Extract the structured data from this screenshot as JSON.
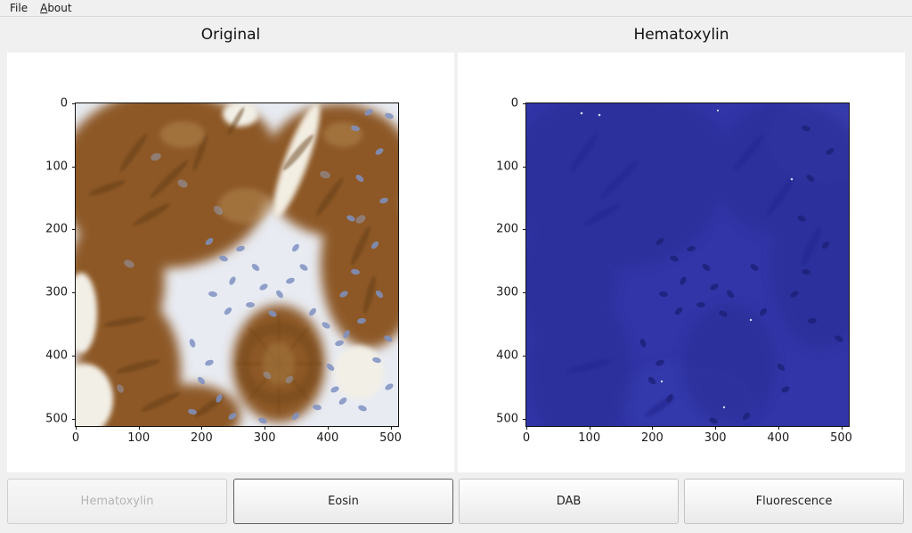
{
  "menubar": {
    "items": [
      {
        "label": "File",
        "underline_index": null
      },
      {
        "label": "About",
        "underline_index": 0
      }
    ]
  },
  "plots": [
    {
      "key": "original",
      "title": "Original",
      "extent": 512,
      "x_ticks": [
        0,
        100,
        200,
        300,
        400,
        500
      ],
      "y_ticks": [
        0,
        100,
        200,
        300,
        400,
        500
      ]
    },
    {
      "key": "hematoxylin",
      "title": "Hematoxylin",
      "extent": 512,
      "x_ticks": [
        0,
        100,
        200,
        300,
        400,
        500
      ],
      "y_ticks": [
        0,
        100,
        200,
        300,
        400,
        500
      ]
    }
  ],
  "buttons": [
    {
      "label": "Hematoxylin",
      "state": "disabled"
    },
    {
      "label": "Eosin",
      "state": "focused"
    },
    {
      "label": "DAB",
      "state": "normal"
    },
    {
      "label": "Fluorescence",
      "state": "normal"
    }
  ],
  "colors": {
    "window_bg": "#f0f0f0",
    "panel_bg": "#ffffff",
    "axis": "#141414",
    "disabled_text": "#b4b4b4",
    "hematoxylin_blue": "#3135a7",
    "dab_brown": "#8d5827"
  }
}
